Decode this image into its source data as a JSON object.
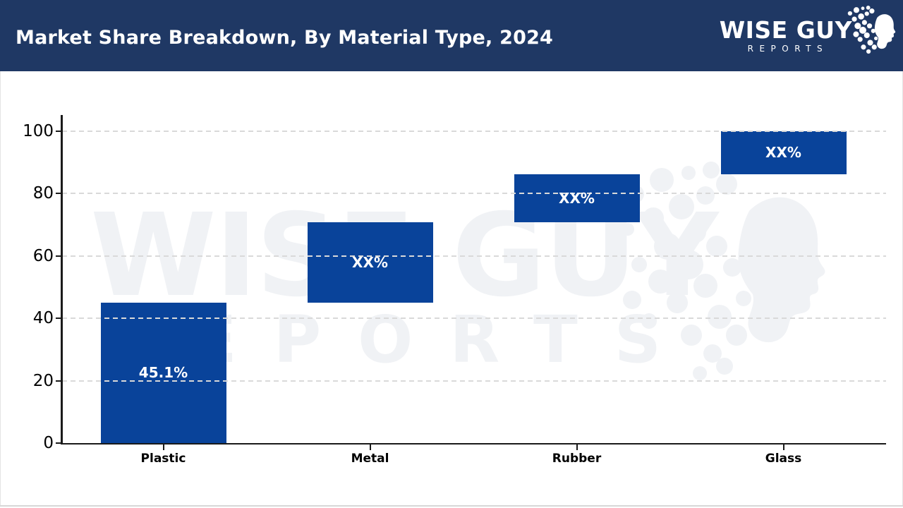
{
  "header": {
    "title": "Market Share Breakdown, By Material Type, 2024",
    "brand": {
      "line1": "WISE GUY",
      "line2": "REPORTS"
    }
  },
  "watermark": {
    "line1": "WISE GUY",
    "line2": "REPORTS"
  },
  "colors": {
    "header_bg": "#1f3864",
    "bar": "#09439a",
    "grid": "#d9d9d9",
    "axis": "#1a1a1a",
    "bar_label": "#ffffff",
    "watermark": "#f0f2f5"
  },
  "chart_data": {
    "type": "bar",
    "subtype": "waterfall",
    "title": "Market Share Breakdown, By Material Type, 2024",
    "categories": [
      "Plastic",
      "Metal",
      "Rubber",
      "Glass"
    ],
    "segments": [
      {
        "category": "Plastic",
        "start": 0,
        "end": 45.1,
        "label": "45.1%"
      },
      {
        "category": "Metal",
        "start": 45.1,
        "end": 70.8,
        "label": "XX%"
      },
      {
        "category": "Rubber",
        "start": 70.8,
        "end": 86.2,
        "label": "XX%"
      },
      {
        "category": "Glass",
        "start": 86.2,
        "end": 100,
        "label": "XX%"
      }
    ],
    "xlabel": "",
    "ylabel": "",
    "ylim": [
      0,
      105
    ],
    "yticks": [
      0,
      20,
      40,
      60,
      80,
      100
    ],
    "grid": "horizontal-dashed",
    "legend": null
  }
}
